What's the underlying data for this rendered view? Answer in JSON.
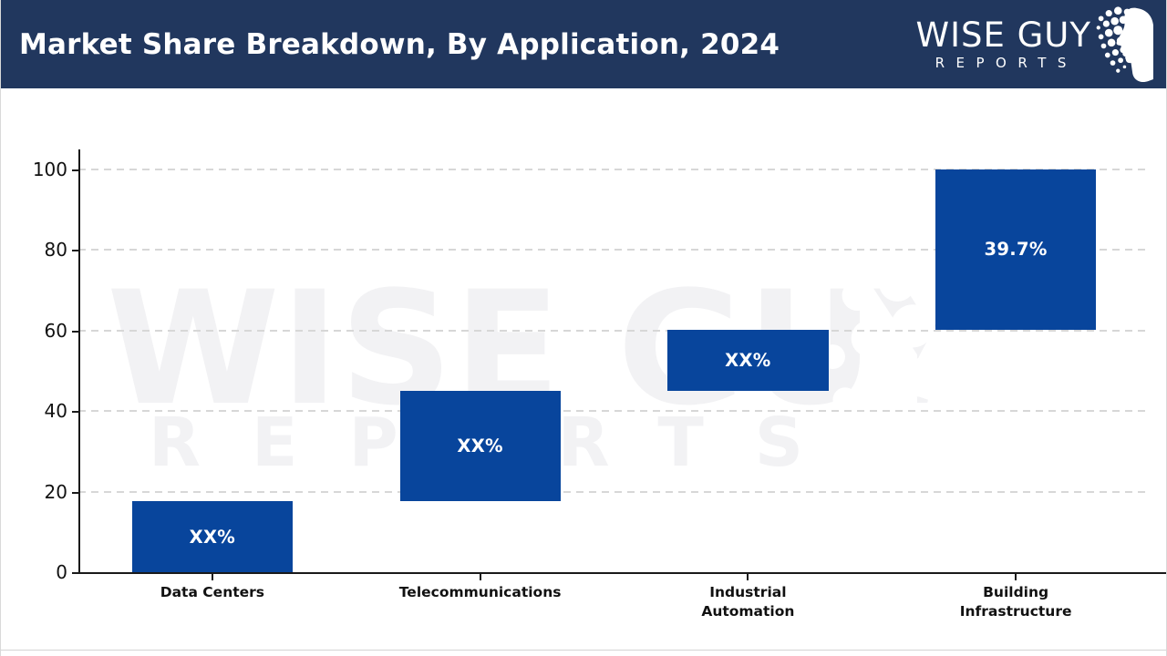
{
  "header": {
    "title": "Market Share Breakdown, By Application, 2024",
    "logo": {
      "name": "WISE GUY",
      "sub": "REPORTS"
    }
  },
  "watermark": {
    "line1": "WISE GUY",
    "line2": "REPORTS"
  },
  "colors": {
    "header_bg": "#21375e",
    "bar": "#08459c",
    "value_label": "#ffffff",
    "grid": "#d7d7d7",
    "axis": "#1a1a1a",
    "watermark": "#f2f2f4"
  },
  "chart_data": {
    "type": "bar",
    "variant": "waterfall",
    "title": "Market Share Breakdown, By Application, 2024",
    "categories": [
      "Data Centers",
      "Telecommunications",
      "Industrial Automation",
      "Building Infrastructure"
    ],
    "category_label_lines": [
      [
        "Data Centers"
      ],
      [
        "Telecommunications"
      ],
      [
        "Industrial",
        "Automation"
      ],
      [
        "Building",
        "Infrastructure"
      ]
    ],
    "segments": [
      {
        "category": "Data Centers",
        "start": 0,
        "end": 17.6,
        "value_label": "XX%"
      },
      {
        "category": "Telecommunications",
        "start": 17.6,
        "end": 45.0,
        "value_label": "XX%"
      },
      {
        "category": "Industrial Automation",
        "start": 45.0,
        "end": 60.3,
        "value_label": "XX%"
      },
      {
        "category": "Building Infrastructure",
        "start": 60.3,
        "end": 100.0,
        "value_label": "39.7%"
      }
    ],
    "xlabel": "",
    "ylabel": "",
    "yticks": [
      0,
      20,
      40,
      60,
      80,
      100
    ],
    "ylim": [
      0,
      105
    ],
    "grid": "horizontal-dashed",
    "legend": "none",
    "watermark": "WISE GUY REPORTS"
  }
}
